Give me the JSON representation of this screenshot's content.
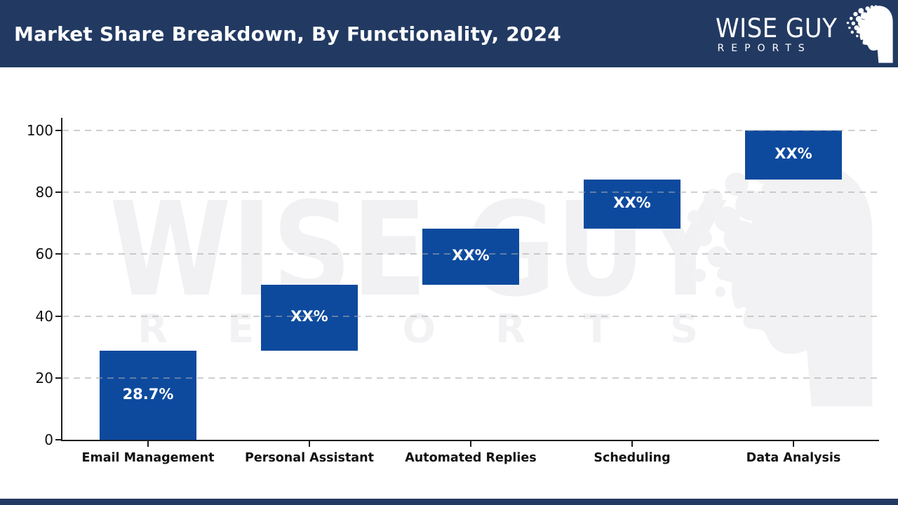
{
  "header": {
    "title": "Market Share Breakdown, By Functionality, 2024",
    "logo": {
      "line1": "WISE GUY",
      "line2": "REPORTS"
    }
  },
  "watermark": {
    "line1": "WISE GUY",
    "line2": "REPORTS"
  },
  "colors": {
    "header_bg": "#223a62",
    "bar": "#0d4a9e",
    "bar_label": "#ffffff",
    "axis": "#1c1c1c",
    "watermark": "#f2f2f4"
  },
  "chart_data": {
    "type": "bar",
    "subtype": "waterfall-floating-bars",
    "title": "Market Share Breakdown, By Functionality, 2024",
    "categories": [
      "Email Management",
      "Personal Assistant",
      "Automated Replies",
      "Scheduling",
      "Data Analysis"
    ],
    "segments": [
      {
        "category": "Email Management",
        "start": 0,
        "end": 28.7,
        "label": "28.7%"
      },
      {
        "category": "Personal Assistant",
        "start": 28.7,
        "end": 50.2,
        "label": "XX%"
      },
      {
        "category": "Automated Replies",
        "start": 50.2,
        "end": 68.2,
        "label": "XX%"
      },
      {
        "category": "Scheduling",
        "start": 68.2,
        "end": 84.2,
        "label": "XX%"
      },
      {
        "category": "Data Analysis",
        "start": 84.2,
        "end": 100,
        "label": "XX%"
      }
    ],
    "y_ticks": [
      0,
      20,
      40,
      60,
      80,
      100
    ],
    "ylim": [
      0,
      100
    ],
    "xlabel": "",
    "ylabel": "",
    "grid": "horizontal-dashed",
    "legend": "none",
    "bar_color": "#0d4a9e",
    "value_label_color": "#ffffff"
  }
}
